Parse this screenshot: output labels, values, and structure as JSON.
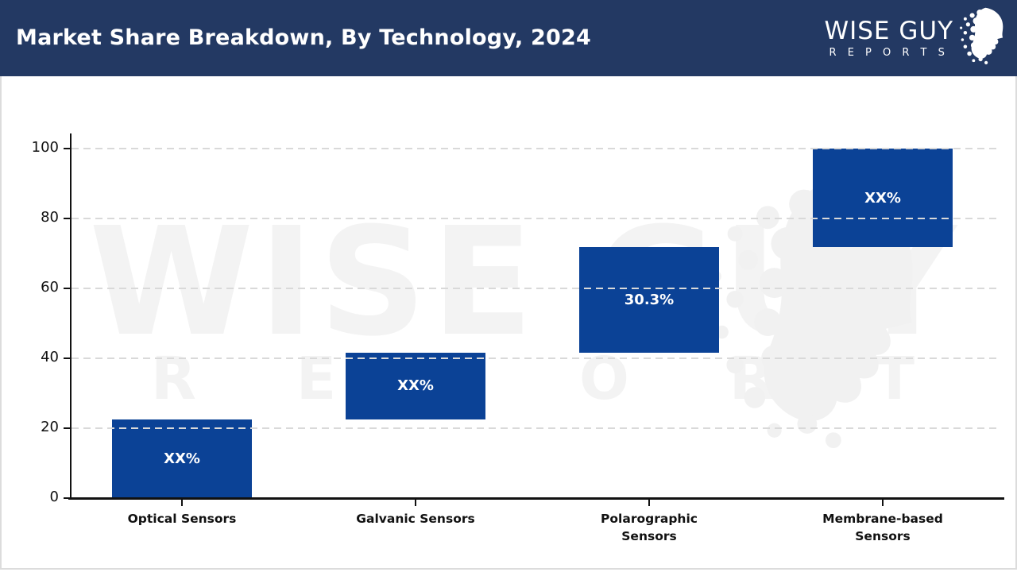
{
  "header": {
    "background_color": "#233963",
    "title": "Market Share Breakdown, By Technology, 2024",
    "logo": {
      "wordmark": "WISE GUY",
      "subtext": "R E P O R T S"
    }
  },
  "watermark": {
    "wordmark": "WISE GUY",
    "subtext": "R E P O R T S"
  },
  "chart_data": {
    "type": "bar",
    "subtype": "floating-segment-waterfall",
    "title": "Market Share Breakdown, By Technology, 2024",
    "categories": [
      "Optical Sensors",
      "Galvanic Sensors",
      "Polarographic\nSensors",
      "Membrane-based\nSensors"
    ],
    "segments": [
      {
        "category": "Optical Sensors",
        "start": 0,
        "end": 22.6,
        "label": "XX%"
      },
      {
        "category": "Galvanic Sensors",
        "start": 22.6,
        "end": 41.5,
        "label": "XX%"
      },
      {
        "category": "Polarographic Sensors",
        "start": 41.5,
        "end": 71.8,
        "label": "30.3%"
      },
      {
        "category": "Membrane-based Sensors",
        "start": 71.8,
        "end": 100,
        "label": "XX%"
      }
    ],
    "ylim": [
      0,
      100
    ],
    "yticks": [
      0,
      20,
      40,
      60,
      80,
      100
    ],
    "xlabel": "",
    "ylabel": "",
    "grid": "dashed-horizontal",
    "gridline_color": "#d9d9d9",
    "bar_color": "#0b4296",
    "bar_label_color": "#ffffff",
    "axis_color": "#111111",
    "legend": "none"
  }
}
